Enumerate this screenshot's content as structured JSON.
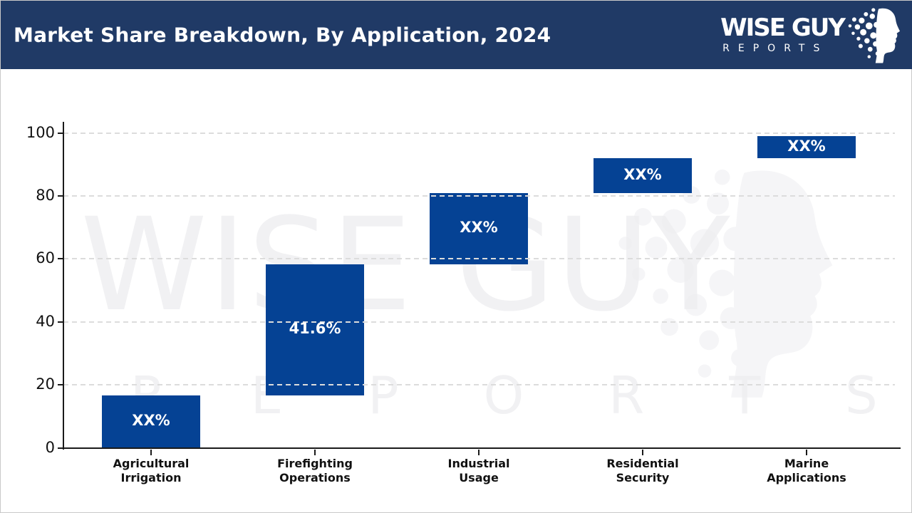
{
  "header": {
    "title": "Market Share Breakdown, By Application, 2024",
    "logo": {
      "line1": "WISE GUY",
      "line2": "REPORTS"
    }
  },
  "watermark": {
    "line1": "WISE GUY",
    "line2": "R E P O R T S"
  },
  "colors": {
    "header_bg": "#203a66",
    "bar_blue": "#054294",
    "bar_label": "#ffffff",
    "grid": "#dcdcdc",
    "axis": "#1a1a1a",
    "watermark": "#f1f1f3"
  },
  "chart_data": {
    "type": "bar",
    "subtype": "waterfall",
    "title": "Market Share Breakdown, By Application, 2024",
    "xlabel": "",
    "ylabel": "",
    "ylim": [
      0,
      104
    ],
    "yticks": [
      0,
      20,
      40,
      60,
      80,
      100
    ],
    "grid": "dashed-horizontal",
    "legend": "none",
    "bar_color": "#054294",
    "categories": [
      {
        "label": "Agricultural Irrigation",
        "lines": [
          "Agricultural",
          "Irrigation"
        ]
      },
      {
        "label": "Firefighting Operations",
        "lines": [
          "Firefighting",
          "Operations"
        ]
      },
      {
        "label": "Industrial Usage",
        "lines": [
          "Industrial",
          "Usage"
        ]
      },
      {
        "label": "Residential Security",
        "lines": [
          "Residential",
          "Security"
        ]
      },
      {
        "label": "Marine Applications",
        "lines": [
          "Marine",
          "Applications"
        ]
      }
    ],
    "segments": [
      {
        "category": "Agricultural Irrigation",
        "start": 0,
        "end": 16.6,
        "value": 16.6,
        "display": "XX%"
      },
      {
        "category": "Firefighting Operations",
        "start": 16.6,
        "end": 58.2,
        "value": 41.6,
        "display": "41.6%"
      },
      {
        "category": "Industrial Usage",
        "start": 58.2,
        "end": 80.8,
        "value": 22.6,
        "display": "XX%"
      },
      {
        "category": "Residential Security",
        "start": 80.8,
        "end": 91.9,
        "value": 11.1,
        "display": "XX%"
      },
      {
        "category": "Marine Applications",
        "start": 91.9,
        "end": 99.0,
        "value": 7.1,
        "display": "XX%"
      }
    ]
  }
}
